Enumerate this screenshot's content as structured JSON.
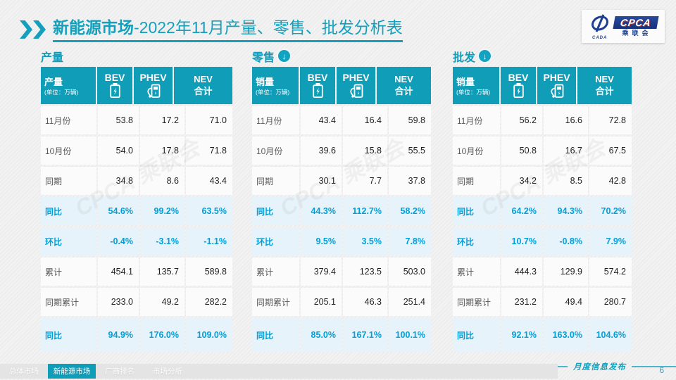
{
  "page": {
    "title_bold": "新能源市场",
    "title_rest": "-2022年11月产量、零售、批发分析表"
  },
  "logo": {
    "mark": "CADA",
    "cpca": "CPCA",
    "sub": "乘联会"
  },
  "watermark": "CPCA 乘联会",
  "footer": {
    "note": "月度信息发布",
    "page_number": "6"
  },
  "footer_tabs": [
    {
      "label": "总体市场",
      "active": false
    },
    {
      "label": "新能源市场",
      "active": true
    },
    {
      "label": "厂商排名",
      "active": false
    },
    {
      "label": "市场分析",
      "active": false
    }
  ],
  "colors": {
    "accent_teal": "#0f9db8",
    "percent_blue": "#00a0d9",
    "logo_navy": "#1d3f90"
  },
  "tables": [
    {
      "section_title": "产量",
      "arrow": false,
      "corner_label": "产量",
      "corner_unit": "(单位：万辆)",
      "columns": [
        {
          "label": "BEV",
          "icon": "battery-icon"
        },
        {
          "label": "PHEV",
          "icon": "charger-icon"
        },
        {
          "label": "NEV",
          "label2": "合计"
        }
      ],
      "rows": [
        {
          "label": "11月份",
          "values": [
            "53.8",
            "17.2",
            "71.0"
          ],
          "highlight": false
        },
        {
          "label": "10月份",
          "values": [
            "54.0",
            "17.8",
            "71.8"
          ],
          "highlight": false
        },
        {
          "label": "同期",
          "values": [
            "34.8",
            "8.6",
            "43.4"
          ],
          "highlight": false
        },
        {
          "label": "同比",
          "values": [
            "54.6%",
            "99.2%",
            "63.5%"
          ],
          "highlight": true
        },
        {
          "label": "环比",
          "values": [
            "-0.4%",
            "-3.1%",
            "-1.1%"
          ],
          "highlight": true
        },
        {
          "label": "累计",
          "values": [
            "454.1",
            "135.7",
            "589.8"
          ],
          "highlight": false
        },
        {
          "label": "同期累计",
          "values": [
            "233.0",
            "49.2",
            "282.2"
          ],
          "highlight": false
        },
        {
          "label": "同比",
          "values": [
            "94.9%",
            "176.0%",
            "109.0%"
          ],
          "highlight": true
        }
      ]
    },
    {
      "section_title": "零售",
      "arrow": true,
      "corner_label": "销量",
      "corner_unit": "(单位：万辆)",
      "columns": [
        {
          "label": "BEV",
          "icon": "battery-icon"
        },
        {
          "label": "PHEV",
          "icon": "charger-icon"
        },
        {
          "label": "NEV",
          "label2": "合计"
        }
      ],
      "rows": [
        {
          "label": "11月份",
          "values": [
            "43.4",
            "16.4",
            "59.8"
          ],
          "highlight": false
        },
        {
          "label": "10月份",
          "values": [
            "39.6",
            "15.8",
            "55.5"
          ],
          "highlight": false
        },
        {
          "label": "同期",
          "values": [
            "30.1",
            "7.7",
            "37.8"
          ],
          "highlight": false
        },
        {
          "label": "同比",
          "values": [
            "44.3%",
            "112.7%",
            "58.2%"
          ],
          "highlight": true
        },
        {
          "label": "环比",
          "values": [
            "9.5%",
            "3.5%",
            "7.8%"
          ],
          "highlight": true
        },
        {
          "label": "累计",
          "values": [
            "379.4",
            "123.5",
            "503.0"
          ],
          "highlight": false
        },
        {
          "label": "同期累计",
          "values": [
            "205.1",
            "46.3",
            "251.4"
          ],
          "highlight": false
        },
        {
          "label": "同比",
          "values": [
            "85.0%",
            "167.1%",
            "100.1%"
          ],
          "highlight": true
        }
      ]
    },
    {
      "section_title": "批发",
      "arrow": true,
      "corner_label": "销量",
      "corner_unit": "(单位：万辆)",
      "columns": [
        {
          "label": "BEV",
          "icon": "battery-icon"
        },
        {
          "label": "PHEV",
          "icon": "charger-icon"
        },
        {
          "label": "NEV",
          "label2": "合计"
        }
      ],
      "rows": [
        {
          "label": "11月份",
          "values": [
            "56.2",
            "16.6",
            "72.8"
          ],
          "highlight": false
        },
        {
          "label": "10月份",
          "values": [
            "50.8",
            "16.7",
            "67.5"
          ],
          "highlight": false
        },
        {
          "label": "同期",
          "values": [
            "34.2",
            "8.5",
            "42.8"
          ],
          "highlight": false
        },
        {
          "label": "同比",
          "values": [
            "64.2%",
            "94.3%",
            "70.2%"
          ],
          "highlight": true
        },
        {
          "label": "环比",
          "values": [
            "10.7%",
            "-0.8%",
            "7.9%"
          ],
          "highlight": true
        },
        {
          "label": "累计",
          "values": [
            "444.3",
            "129.9",
            "574.2"
          ],
          "highlight": false
        },
        {
          "label": "同期累计",
          "values": [
            "231.2",
            "49.4",
            "280.7"
          ],
          "highlight": false
        },
        {
          "label": "同比",
          "values": [
            "92.1%",
            "163.0%",
            "104.6%"
          ],
          "highlight": true
        }
      ]
    }
  ]
}
